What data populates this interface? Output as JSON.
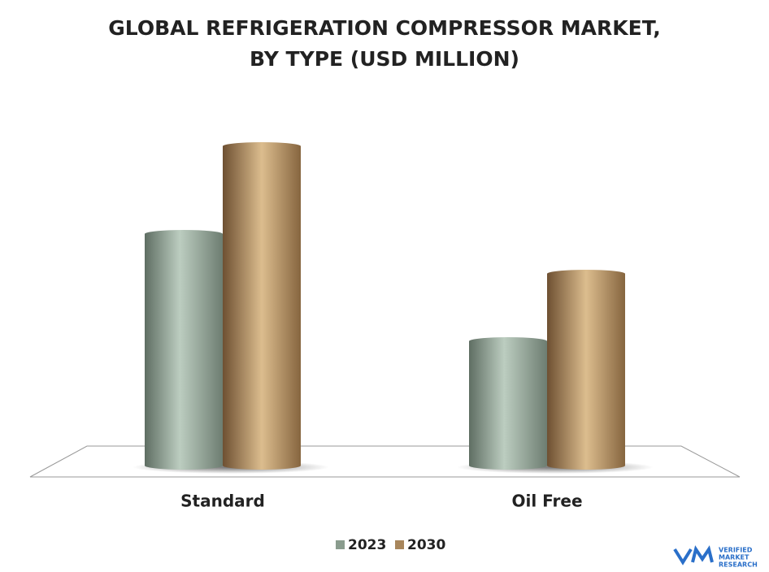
{
  "chart_data": {
    "type": "bar",
    "title": "GLOBAL REFRIGERATION COMPRESSOR MARKET,",
    "subtitle": "BY TYPE (USD MILLION)",
    "categories": [
      "Standard",
      "Oil Free"
    ],
    "series": [
      {
        "name": "2023",
        "color": "#8a9c8e",
        "values": [
          285,
          153
        ]
      },
      {
        "name": "2030",
        "color": "#a8865c",
        "values": [
          393,
          236
        ]
      }
    ],
    "logo": {
      "line1": "VERIFIED",
      "line2": "MARKET",
      "line3": "RESEARCH"
    }
  }
}
